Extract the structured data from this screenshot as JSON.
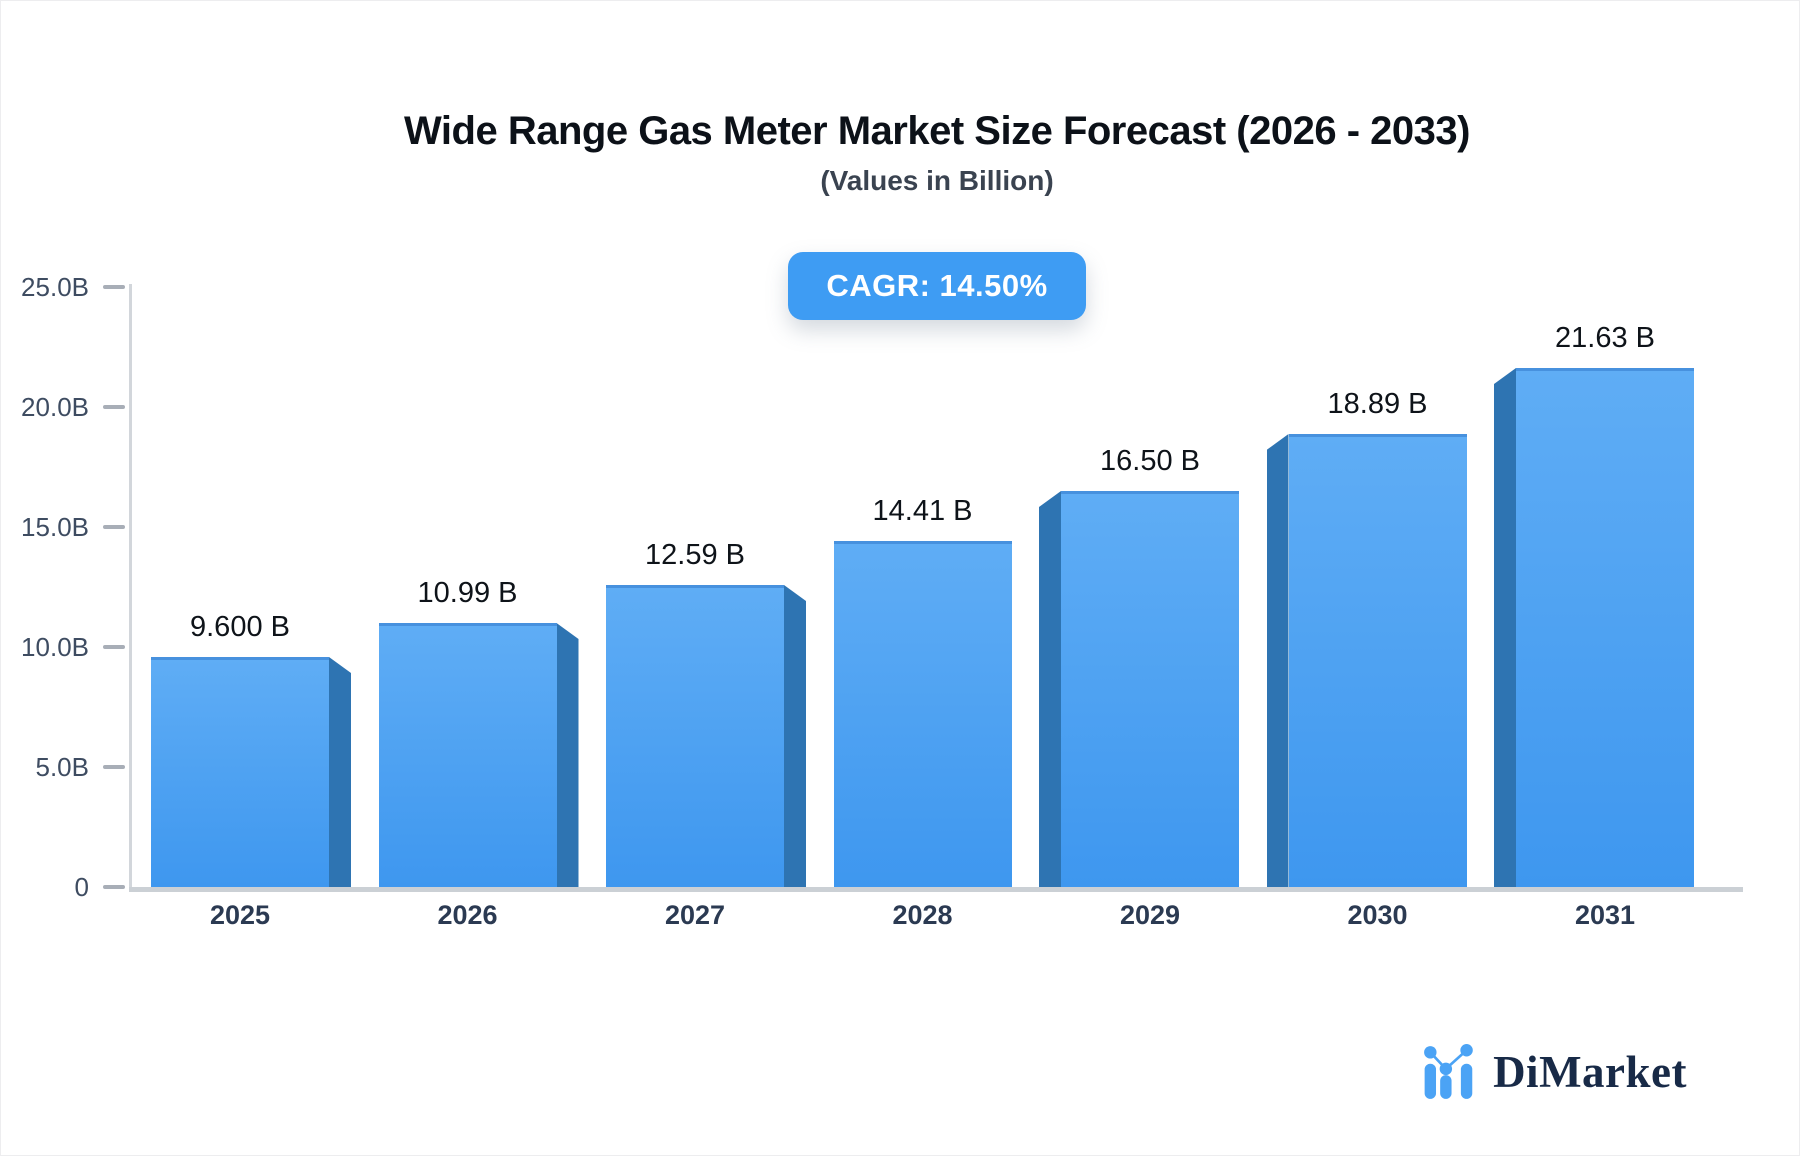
{
  "header": {
    "title": "Wide Range Gas Meter Market Size Forecast (2026 - 2033)",
    "subtitle": "(Values in Billion)",
    "cagr_badge": "CAGR: 14.50%"
  },
  "chart_data": {
    "type": "bar",
    "title": "Wide Range Gas Meter Market Size Forecast (2026 - 2033)",
    "subtitle": "(Values in Billion)",
    "cagr_label": "CAGR: 14.50%",
    "unit": "Billion",
    "categories": [
      "2025",
      "2026",
      "2027",
      "2028",
      "2029",
      "2030",
      "2031"
    ],
    "values": [
      9.6,
      10.99,
      12.59,
      14.41,
      16.5,
      18.89,
      21.63
    ],
    "value_labels": [
      "9.600 B",
      "10.99 B",
      "12.59 B",
      "14.41 B",
      "16.50 B",
      "18.89 B",
      "21.63 B"
    ],
    "y_ticks": [
      {
        "label": "25.0B",
        "value": 25
      },
      {
        "label": "20.0B",
        "value": 20
      },
      {
        "label": "15.0B",
        "value": 15
      },
      {
        "label": "10.0B",
        "value": 10
      },
      {
        "label": "5.0B",
        "value": 5
      },
      {
        "label": "0",
        "value": 0
      }
    ],
    "ylim": [
      0,
      25
    ],
    "grid": false,
    "legend": null,
    "xlabel": "",
    "ylabel": "",
    "colors": {
      "bar_face_top": "#5fadf5",
      "bar_face_bottom": "#3e97ef",
      "bar_top_edge": "#4791de",
      "bar_side": "#2e74b2",
      "accent": "#3e9cf3",
      "axis": "#cfd3d8",
      "tick_dash": "#a8aeb7"
    }
  },
  "footer": {
    "brand": "DiMarket",
    "brand_icon": "bar-line-chart-icon",
    "brand_blue": "#4ba3f5",
    "brand_navy": "#182a47"
  }
}
